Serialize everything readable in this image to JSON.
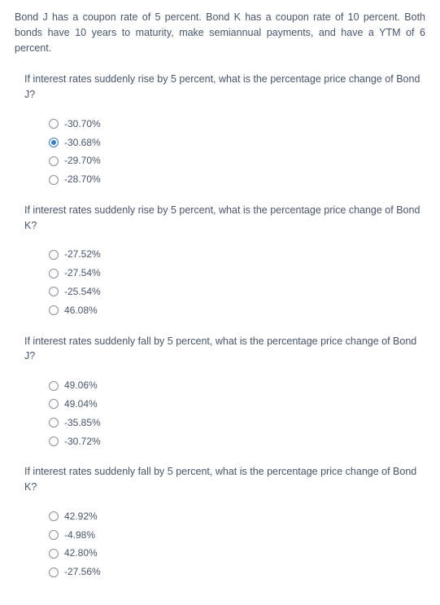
{
  "intro": "Bond J has a coupon rate of 5 percent. Bond K has a coupon rate of 10 percent. Both bonds have 10 years to maturity, make semiannual payments, and have a YTM of 6 percent.",
  "questions": [
    {
      "text": "If interest rates suddenly rise by 5 percent, what is the percentage price change of Bond J?",
      "options": [
        "-30.70%",
        "-30.68%",
        "-29.70%",
        "-28.70%"
      ],
      "selected": 1
    },
    {
      "text": "If interest rates suddenly rise by 5 percent, what is the percentage price change of Bond K?",
      "options": [
        "-27.52%",
        "-27.54%",
        "-25.54%",
        "46.08%"
      ],
      "selected": -1
    },
    {
      "text": "If interest rates suddenly fall by 5 percent, what is the percentage price change of Bond J?",
      "options": [
        "49.06%",
        "49.04%",
        "-35.85%",
        "-30.72%"
      ],
      "selected": -1
    },
    {
      "text": "If interest rates suddenly fall by 5 percent, what is the percentage price change of Bond K?",
      "options": [
        "42.92%",
        "-4.98%",
        "42.80%",
        "-27.56%"
      ],
      "selected": -1
    }
  ]
}
